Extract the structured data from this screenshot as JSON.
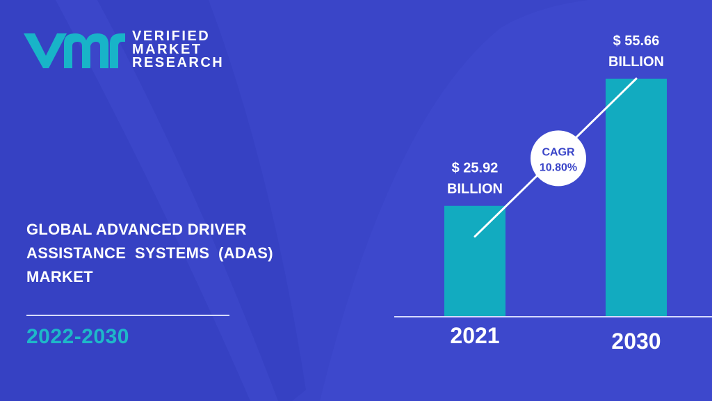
{
  "brand": {
    "line1": "VERIFIED",
    "line2": "MARKET",
    "line3": "RESEARCH"
  },
  "title": {
    "line1": "GLOBAL ADVANCED DRIVER",
    "line2": "ASSISTANCE  SYSTEMS  (ADAS)",
    "line3": "MARKET"
  },
  "period": "2022-2030",
  "colors": {
    "background": "#3a45c8",
    "bar": "#12abc0",
    "accent_text": "#1eb8c9"
  },
  "chart_data": {
    "type": "bar",
    "categories": [
      "2021",
      "2030"
    ],
    "values": [
      25.92,
      55.66
    ],
    "value_labels": [
      [
        "$ 25.92",
        "BILLION"
      ],
      [
        "$ 55.66",
        "BILLION"
      ]
    ],
    "unit": "USD Billion",
    "annotation": {
      "line1": "CAGR",
      "line2": "10.80%"
    }
  }
}
